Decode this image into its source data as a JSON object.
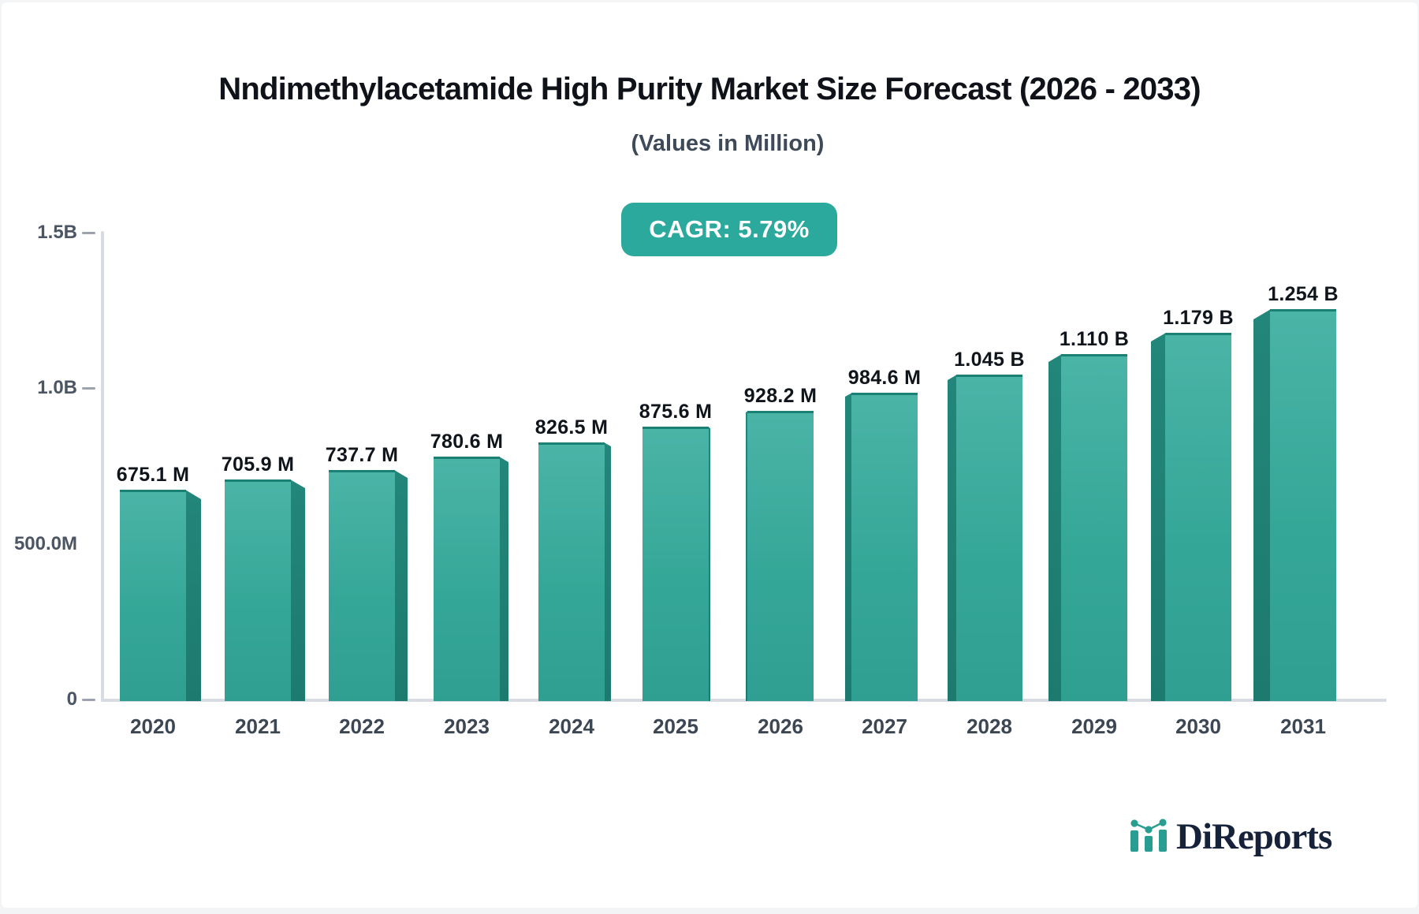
{
  "page": {
    "background": "#f3f4f6",
    "card_background": "#ffffff"
  },
  "header": {
    "title": "Nndimethylacetamide High Purity Market Size Forecast (2026 - 2033)",
    "subtitle": "(Values in Million)"
  },
  "badge": {
    "label": "CAGR: 5.79%",
    "background": "#2ba99d",
    "text_color": "#ffffff"
  },
  "chart_data": {
    "type": "bar",
    "title": "Nndimethylacetamide High Purity Market Size Forecast (2026 - 2033)",
    "subtitle": "(Values in Million)",
    "categories": [
      "2020",
      "2021",
      "2022",
      "2023",
      "2024",
      "2025",
      "2026",
      "2027",
      "2028",
      "2029",
      "2030",
      "2031"
    ],
    "values_millions": [
      675.1,
      705.9,
      737.7,
      780.6,
      826.5,
      875.6,
      928.2,
      984.6,
      1045,
      1110,
      1179,
      1254
    ],
    "bar_labels": [
      "675.1 M",
      "705.9 M",
      "737.7 M",
      "780.6 M",
      "826.5 M",
      "875.6 M",
      "928.2 M",
      "984.6 M",
      "1.045 B",
      "1.110 B",
      "1.179 B",
      "1.254 B"
    ],
    "xlabel": "",
    "ylabel": "",
    "ylim": [
      0,
      1500
    ],
    "y_ticks": [
      {
        "label": "1.5B",
        "value": 1500,
        "has_tick": true
      },
      {
        "label": "1.0B",
        "value": 1000,
        "has_tick": true
      },
      {
        "label": "500.0M",
        "value": 500,
        "has_tick": false
      },
      {
        "label": "0",
        "value": 0,
        "has_tick": true
      }
    ],
    "grid": false,
    "legend": false,
    "bar_color_top": "#4ab4a7",
    "bar_color_bottom": "#2f9f91",
    "bar_side_color": "#1e7c71",
    "bar_top_edge_color": "#1a8174",
    "style": "3d-perspective-center"
  },
  "branding": {
    "name": "DiReports",
    "icon": "bar-chart-logo-icon",
    "text_color": "#16223a",
    "icon_color": "#2a9d92"
  }
}
